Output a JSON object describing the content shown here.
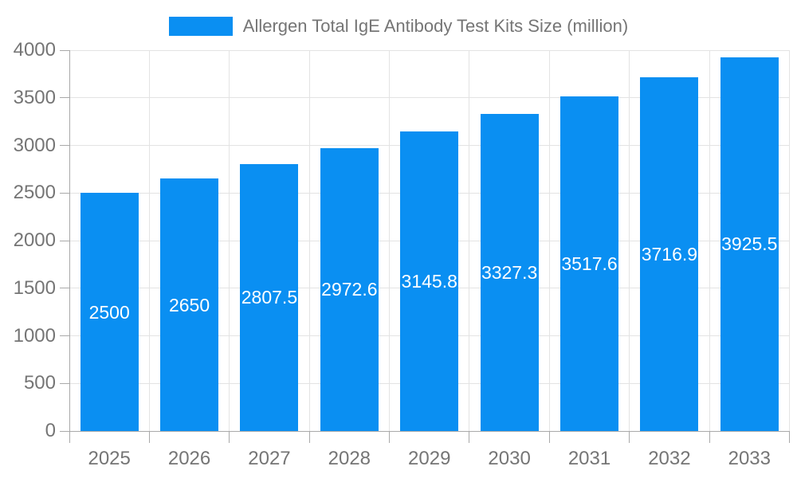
{
  "chart_data": {
    "type": "bar",
    "title": "Allergen Total IgE Antibody Test Kits Size (million)",
    "categories": [
      "2025",
      "2026",
      "2027",
      "2028",
      "2029",
      "2030",
      "2031",
      "2032",
      "2033"
    ],
    "values": [
      2500,
      2650,
      2807.5,
      2972.6,
      3145.8,
      3327.3,
      3517.6,
      3716.9,
      3925.5
    ],
    "value_labels": [
      "2500",
      "2650",
      "2807.5",
      "2972.6",
      "3145.8",
      "3327.3",
      "3517.6",
      "3716.9",
      "3925.5"
    ],
    "xlabel": "",
    "ylabel": "",
    "ylim": [
      0,
      4000
    ],
    "ytick_step": 500,
    "ytick_labels": [
      "0",
      "500",
      "1000",
      "1500",
      "2000",
      "2500",
      "3000",
      "3500",
      "4000"
    ],
    "grid": true,
    "legend_position": "top-center",
    "colors": {
      "bar": "#0A8FF2",
      "bar_label": "#FFFFFF",
      "axis_text": "#757575",
      "grid_line": "#E3E3E3",
      "axis_line": "#A9A9A9",
      "background": "#FFFFFF"
    }
  }
}
